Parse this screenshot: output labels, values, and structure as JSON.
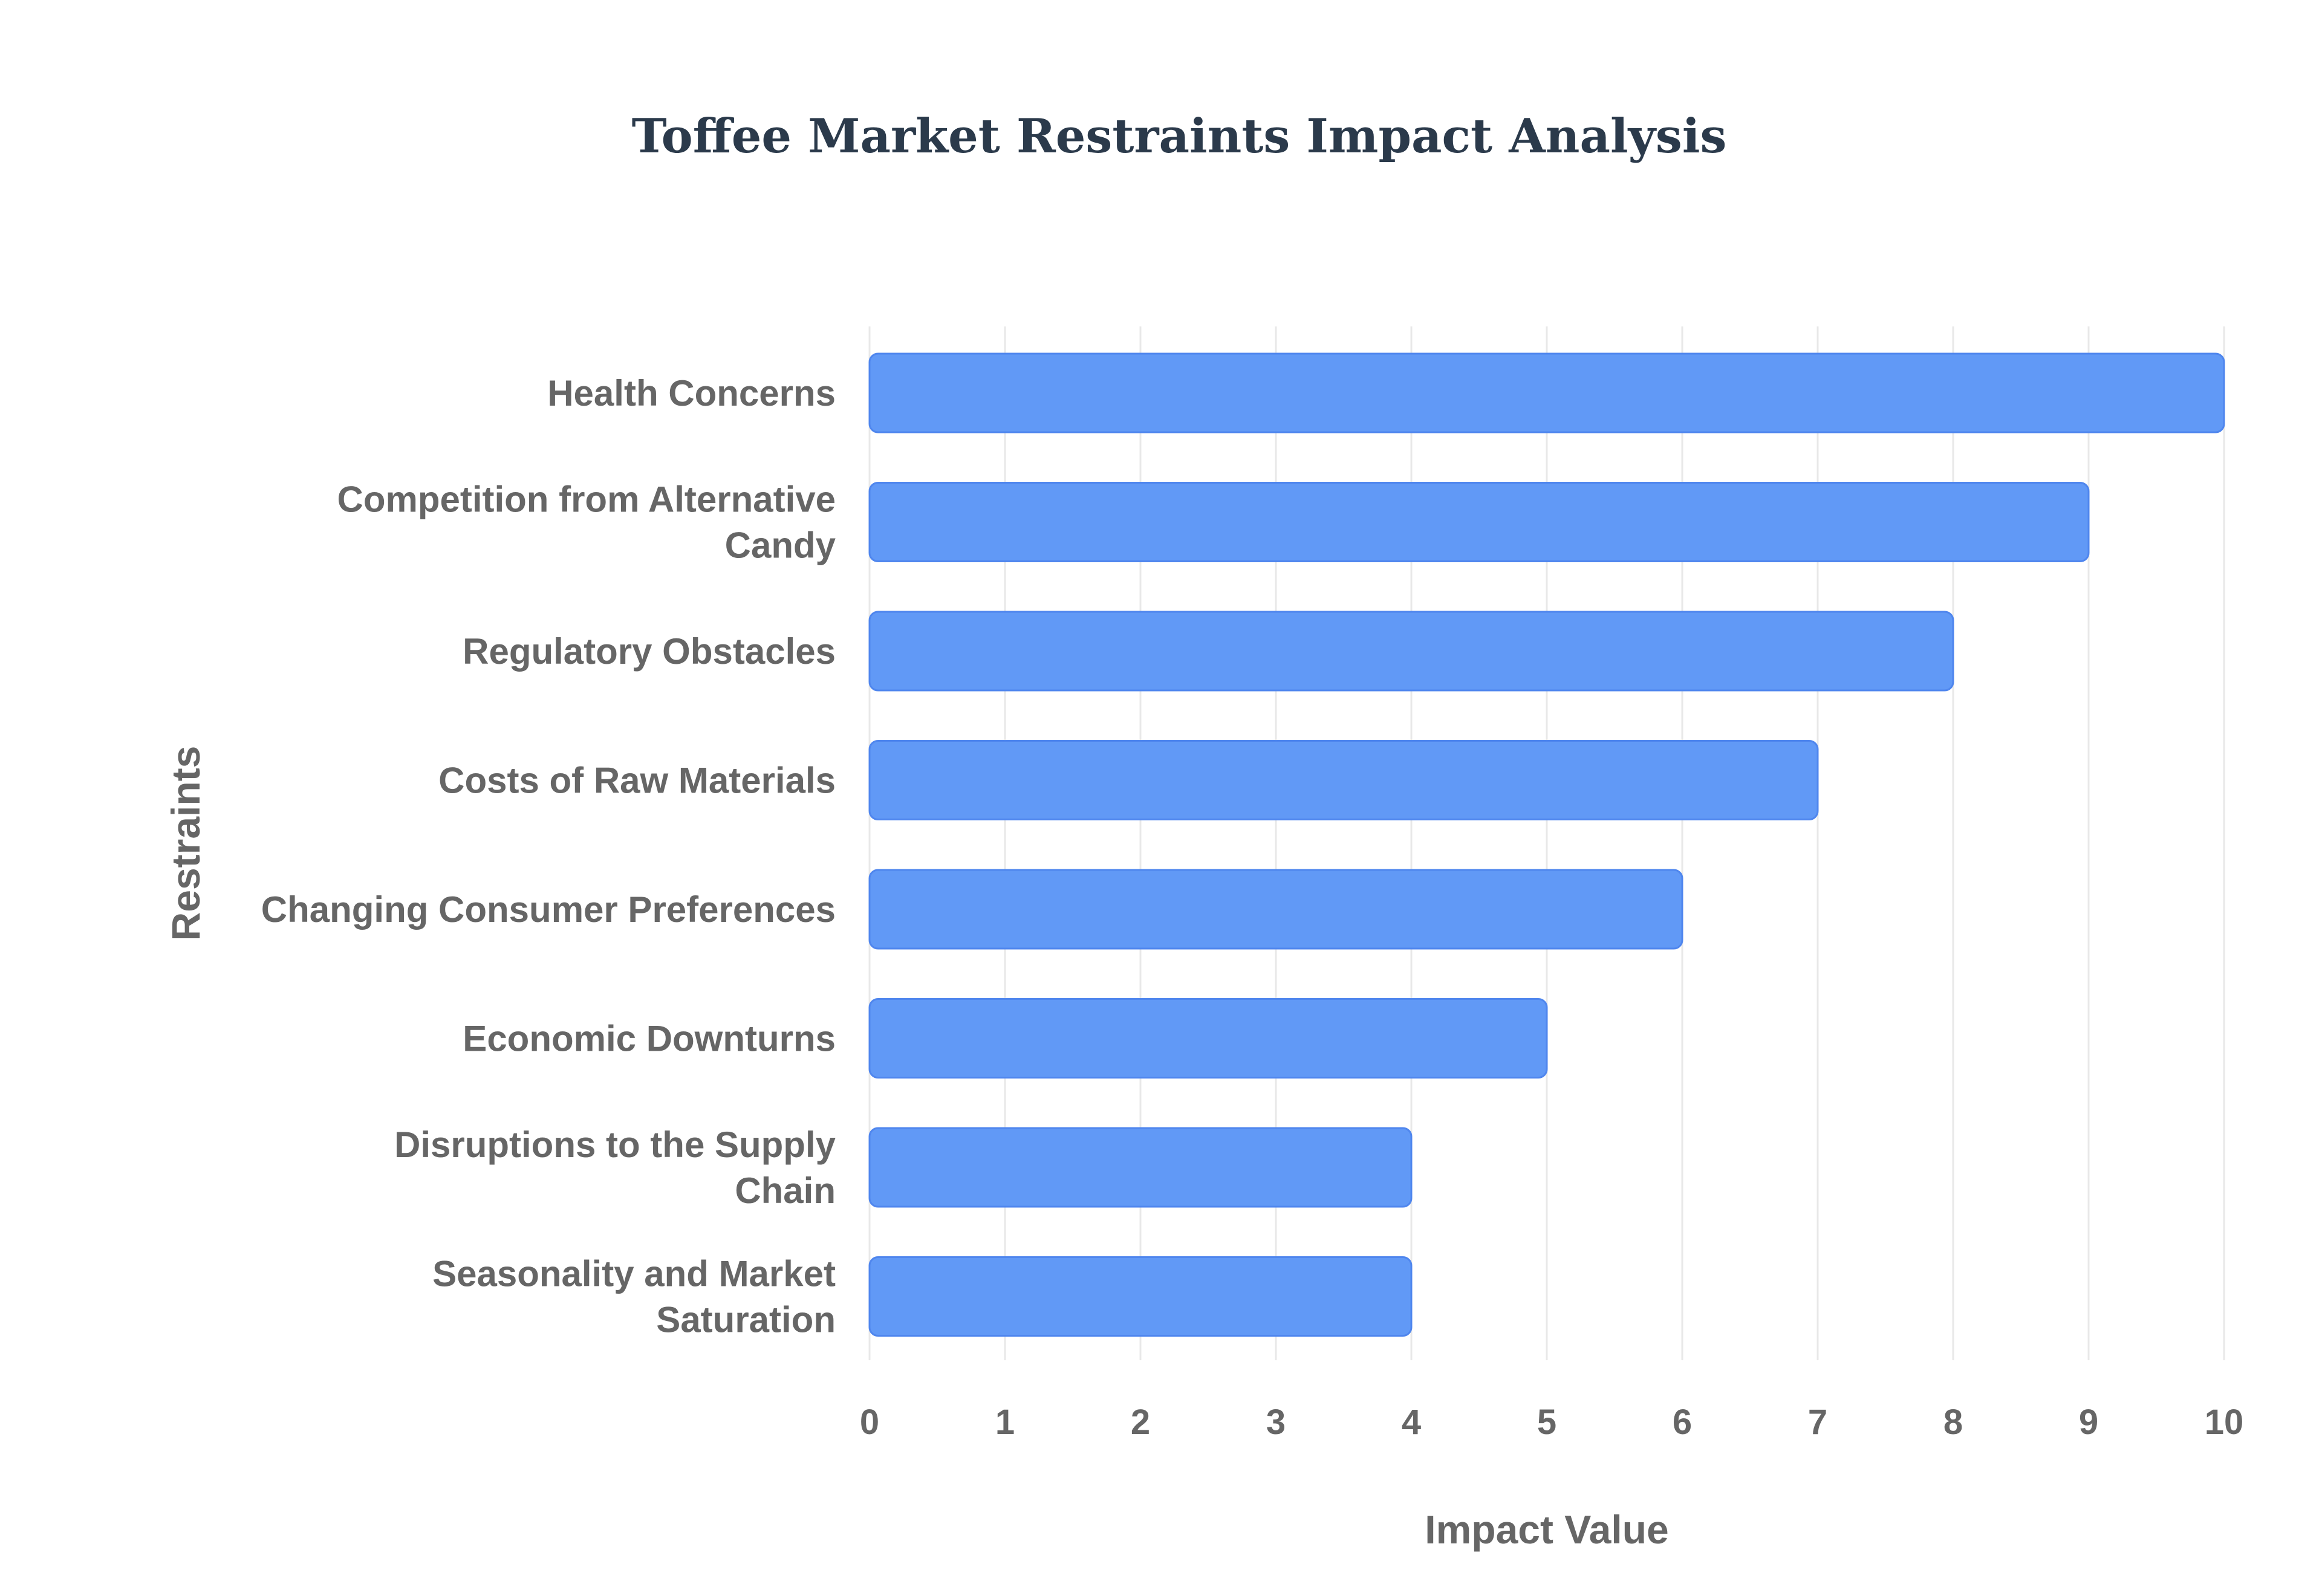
{
  "chart_data": {
    "type": "bar",
    "orientation": "horizontal",
    "title": "Toffee Market  Restraints Impact Analysis",
    "xlabel": "Impact Value",
    "ylabel": "Restraints",
    "categories": [
      "Health Concerns",
      "Competition from Alternative Candy",
      "Regulatory Obstacles",
      "Costs of Raw Materials",
      "Changing Consumer Preferences",
      "Economic Downturns",
      "Disruptions to the Supply Chain",
      "Seasonality and Market Saturation"
    ],
    "category_lines": [
      [
        "Health Concerns"
      ],
      [
        "Competition from Alternative",
        "Candy"
      ],
      [
        "Regulatory Obstacles"
      ],
      [
        "Costs of Raw Materials"
      ],
      [
        "Changing Consumer Preferences"
      ],
      [
        "Economic Downturns"
      ],
      [
        "Disruptions to the Supply",
        "Chain"
      ],
      [
        "Seasonality and Market",
        "Saturation"
      ]
    ],
    "values": [
      10,
      9,
      8,
      7,
      6,
      5,
      4,
      4
    ],
    "xlim": [
      0,
      10
    ],
    "xticks": [
      "0",
      "1",
      "2",
      "3",
      "4",
      "5",
      "6",
      "7",
      "8",
      "9",
      "10"
    ],
    "grid": true,
    "legend": "none"
  },
  "colors": {
    "bar_fill": "#6199f6",
    "bar_stroke": "#4f86ee",
    "title": "#2b3a4b",
    "axis_text": "#666666",
    "grid": "#e8e8e8",
    "background": "#ffffff"
  }
}
